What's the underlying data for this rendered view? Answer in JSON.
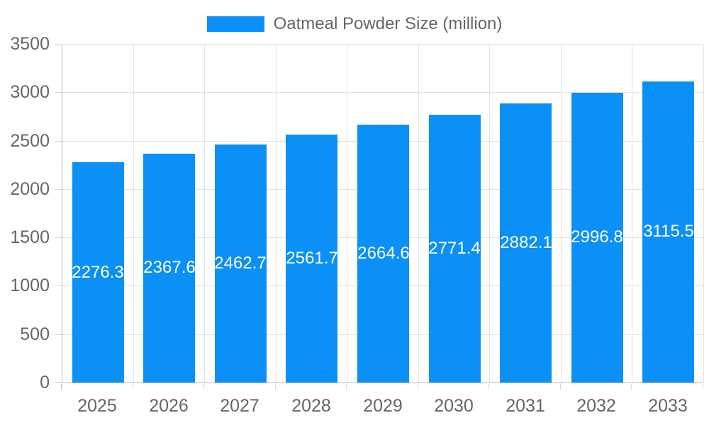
{
  "chart_data": {
    "type": "bar",
    "title": "Oatmeal Powder Size (million)",
    "categories": [
      "2025",
      "2026",
      "2027",
      "2028",
      "2029",
      "2030",
      "2031",
      "2032",
      "2033"
    ],
    "values": [
      2276.3,
      2367.6,
      2462.7,
      2561.7,
      2664.6,
      2771.4,
      2882.1,
      2996.8,
      3115.5
    ],
    "value_labels": [
      "2276.3",
      "2367.6",
      "2462.7",
      "2561.7",
      "2664.6",
      "2771.4",
      "2882.1",
      "2996.8",
      "3115.5"
    ],
    "xlabel": "",
    "ylabel": "",
    "ylim": [
      0,
      3500
    ],
    "ytick_step": 500,
    "ytick_labels": [
      "0",
      "500",
      "1000",
      "1500",
      "2000",
      "2500",
      "3000",
      "3500"
    ],
    "grid": true,
    "legend_position": "top",
    "bar_color": "#0b90f7",
    "bar_label_color": "#ffffff",
    "axis_text_color": "#666666",
    "gridline_color": "#e3e3e3",
    "axis_line_color": "#b9b9b9",
    "background_color": "#ffffff"
  }
}
